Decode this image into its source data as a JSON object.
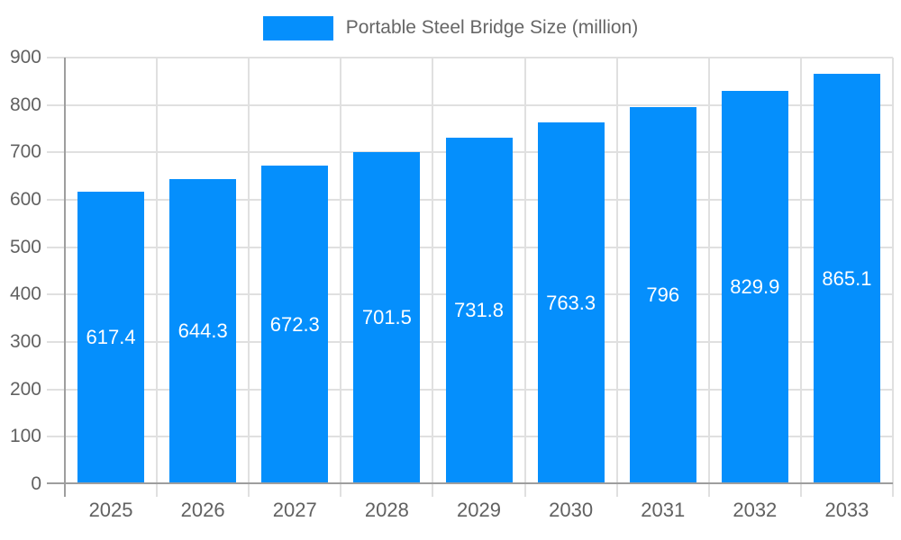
{
  "legend": {
    "label": "Portable Steel Bridge Size (million)"
  },
  "chart_data": {
    "type": "bar",
    "title": "Portable Steel Bridge Size (million)",
    "series_name": "Portable Steel Bridge Size (million)",
    "categories": [
      "2025",
      "2026",
      "2027",
      "2028",
      "2029",
      "2030",
      "2031",
      "2032",
      "2033"
    ],
    "values": [
      617.4,
      644.3,
      672.3,
      701.5,
      731.8,
      763.3,
      796,
      829.9,
      865.1
    ],
    "xlabel": "",
    "ylabel": "",
    "ylim": [
      0,
      900
    ],
    "yticks": [
      0,
      100,
      200,
      300,
      400,
      500,
      600,
      700,
      800,
      900
    ],
    "grid": true,
    "legend_position": "top-center",
    "value_labels_position": "inside-middle",
    "colors": {
      "bar": "#058ffc",
      "grid_line": "#e0e0e0",
      "axis_line": "#9e9e9e",
      "axis_label": "#616161",
      "legend_text": "#666666",
      "value_label": "#ffffff",
      "background": "#ffffff"
    }
  }
}
